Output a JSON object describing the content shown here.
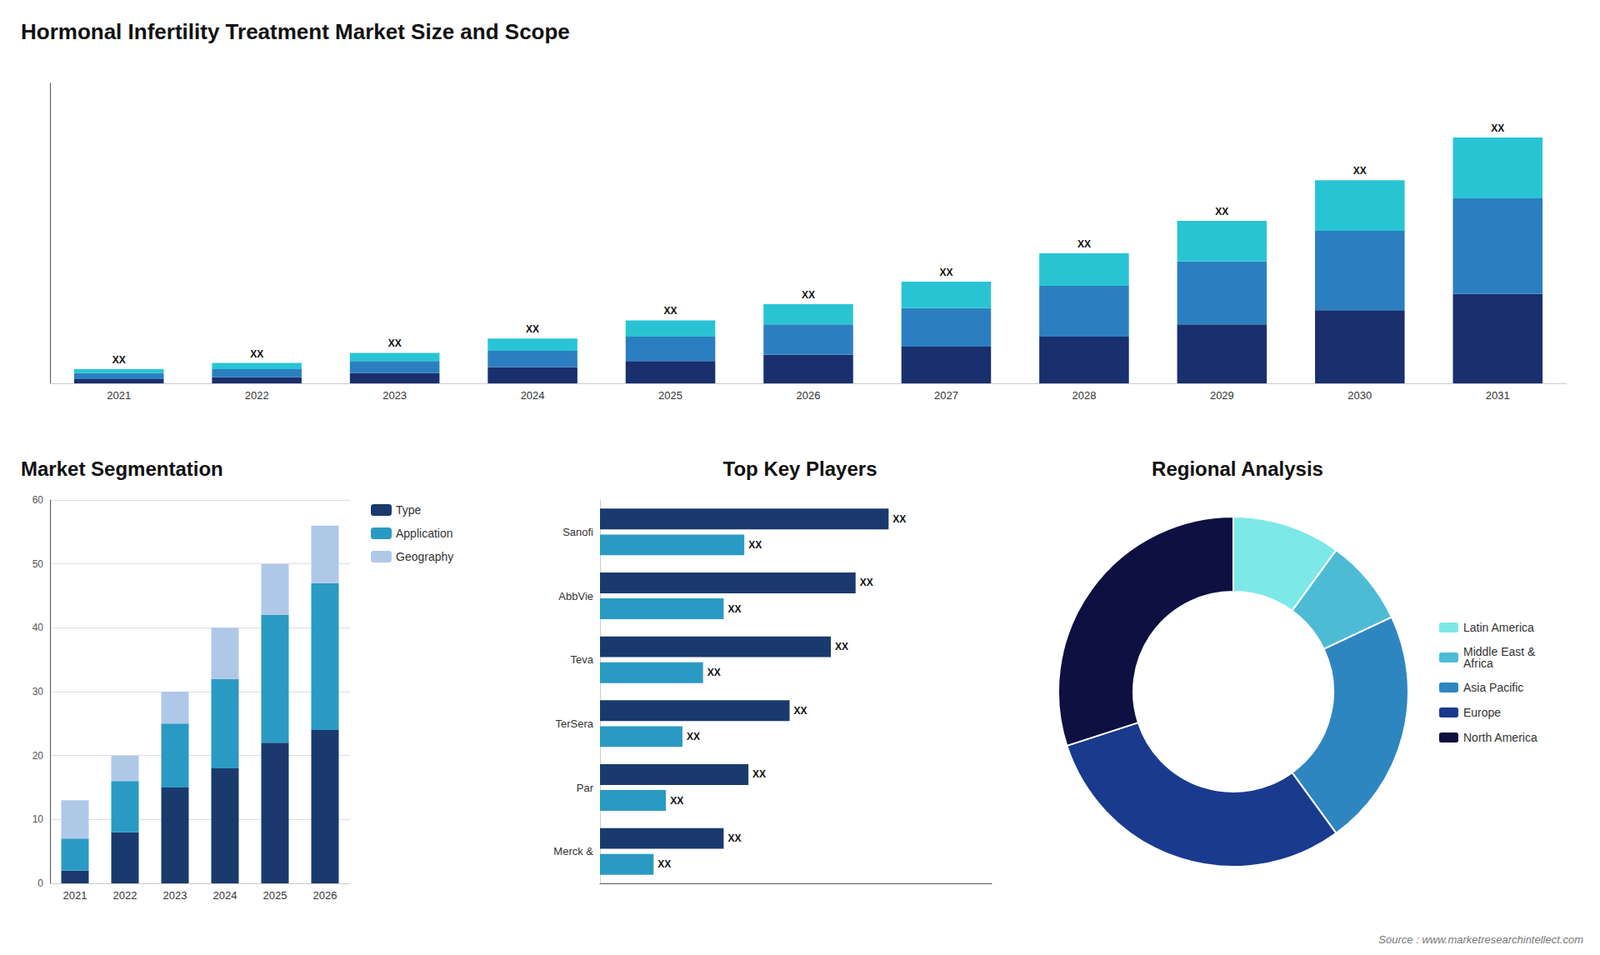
{
  "chart_data": [
    {
      "type": "bar",
      "title": "Hormonal Infertility Treatment Market Size and Scope",
      "annotations": [
        "Source : www.marketresearchintellect.com"
      ],
      "stacked": true,
      "categories": [
        "2021",
        "2022",
        "2023",
        "2024",
        "2025",
        "2026",
        "2027",
        "2028",
        "2029",
        "2030",
        "2031"
      ],
      "series": [
        {
          "color": "#1a2f6e",
          "values": [
            2,
            3,
            5,
            8,
            11,
            14,
            18,
            23,
            29,
            36,
            44
          ]
        },
        {
          "color": "#2b7fc0",
          "values": [
            3,
            4,
            6,
            8,
            12,
            15,
            19,
            25,
            31,
            39,
            47
          ]
        },
        {
          "color": "#29c4d4",
          "values": [
            2,
            3,
            4,
            6,
            8,
            10,
            13,
            16,
            20,
            25,
            30
          ],
          "value_labels": [
            "XX",
            "XX",
            "XX",
            "XX",
            "XX",
            "XX",
            "XX",
            "XX",
            "XX",
            "XX",
            "XX"
          ]
        }
      ],
      "ylim": [
        0,
        147.62
      ],
      "tick_labels": "x",
      "grid": false
    },
    {
      "type": "bar",
      "title": "Market Segmentation",
      "stacked": true,
      "categories": [
        "2021",
        "2022",
        "2023",
        "2024",
        "2025",
        "2026"
      ],
      "series": [
        {
          "name": "Type",
          "color": "#1a3a6e",
          "values": [
            2,
            8,
            15,
            18,
            22,
            24
          ]
        },
        {
          "name": "Application",
          "color": "#2a9ac4",
          "values": [
            5,
            8,
            10,
            14,
            20,
            23
          ]
        },
        {
          "name": "Geography",
          "color": "#b0c8e8",
          "values": [
            6,
            4,
            5,
            8,
            8,
            9
          ]
        }
      ],
      "ylim": [
        0,
        60
      ],
      "yticks": [
        0,
        10,
        20,
        30,
        40,
        50,
        60
      ],
      "grid": true,
      "legend": "right"
    },
    {
      "type": "bar",
      "orientation": "horizontal",
      "title": "Top Key Players",
      "categories": [
        "Sanofi",
        "AbbVie",
        "Teva",
        "TerSera",
        "Par",
        "Merck &"
      ],
      "series": [
        {
          "color": "#1a3a6e",
          "values": [
            0.7,
            0.62,
            0.56,
            0.46,
            0.36,
            0.3
          ],
          "value_labels": [
            "XX",
            "XX",
            "XX",
            "XX",
            "XX",
            "XX"
          ]
        },
        {
          "color": "#2a9ac4",
          "values": [
            0.35,
            0.3,
            0.25,
            0.2,
            0.16,
            0.13
          ],
          "value_labels": [
            "XX",
            "XX",
            "XX",
            "XX",
            "XX",
            "XX"
          ]
        }
      ],
      "xlim": [
        0,
        0.95
      ],
      "tick_labels": "y",
      "grid": false
    },
    {
      "type": "pie",
      "title": "Regional Analysis",
      "categories": [
        "Latin America",
        "Middle East &\nAfrica",
        "Asia Pacific",
        "Europe",
        "North America"
      ],
      "values": [
        10,
        8,
        22,
        30,
        30
      ],
      "colors": [
        "#7de8e8",
        "#4dbbd4",
        "#2e86c1",
        "#1a3a8e",
        "#0d1040"
      ],
      "legend": "right"
    }
  ]
}
